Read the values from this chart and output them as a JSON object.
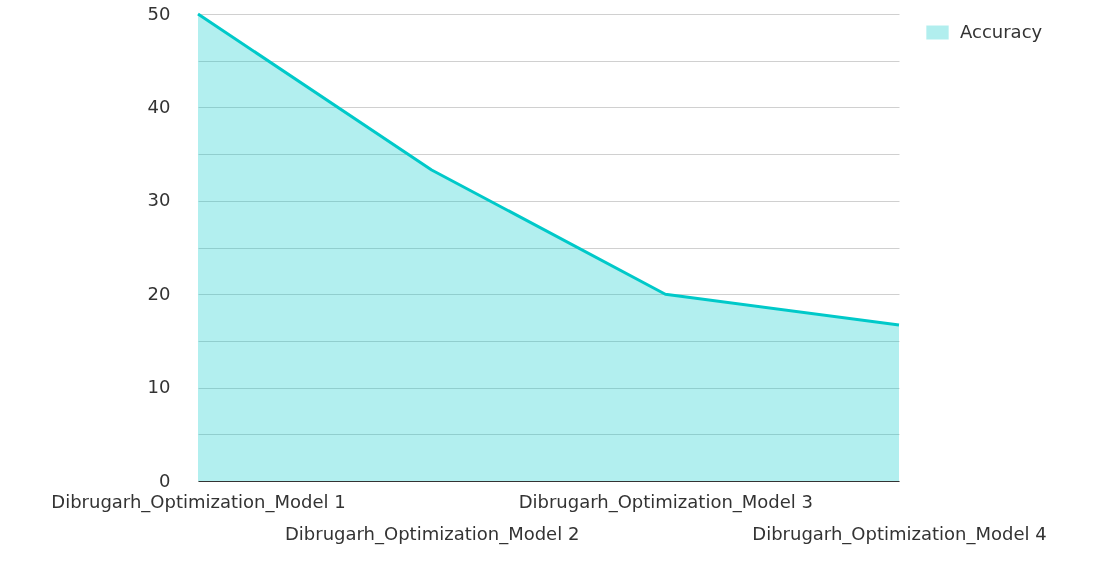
{
  "chart_data": {
    "type": "area",
    "categories": [
      "Dibrugarh_Optimization_Model 1",
      "Dibrugarh_Optimization_Model 2",
      "Dibrugarh_Optimization_Model 3",
      "Dibrugarh_Optimization_Model 4"
    ],
    "series": [
      {
        "name": "Accuracy",
        "color": "#00c9c9",
        "values": [
          50,
          33.3,
          20,
          16.7
        ]
      }
    ],
    "ylim": [
      0,
      50
    ],
    "yticks": [
      0,
      {
        "value": 5,
        "label": null
      },
      10,
      {
        "value": 15,
        "label": null
      },
      20,
      {
        "value": 25,
        "label": null
      },
      30,
      {
        "value": 35,
        "label": null
      },
      40,
      {
        "value": 45,
        "label": null
      },
      50
    ],
    "grid": "y",
    "legend": "top right"
  }
}
